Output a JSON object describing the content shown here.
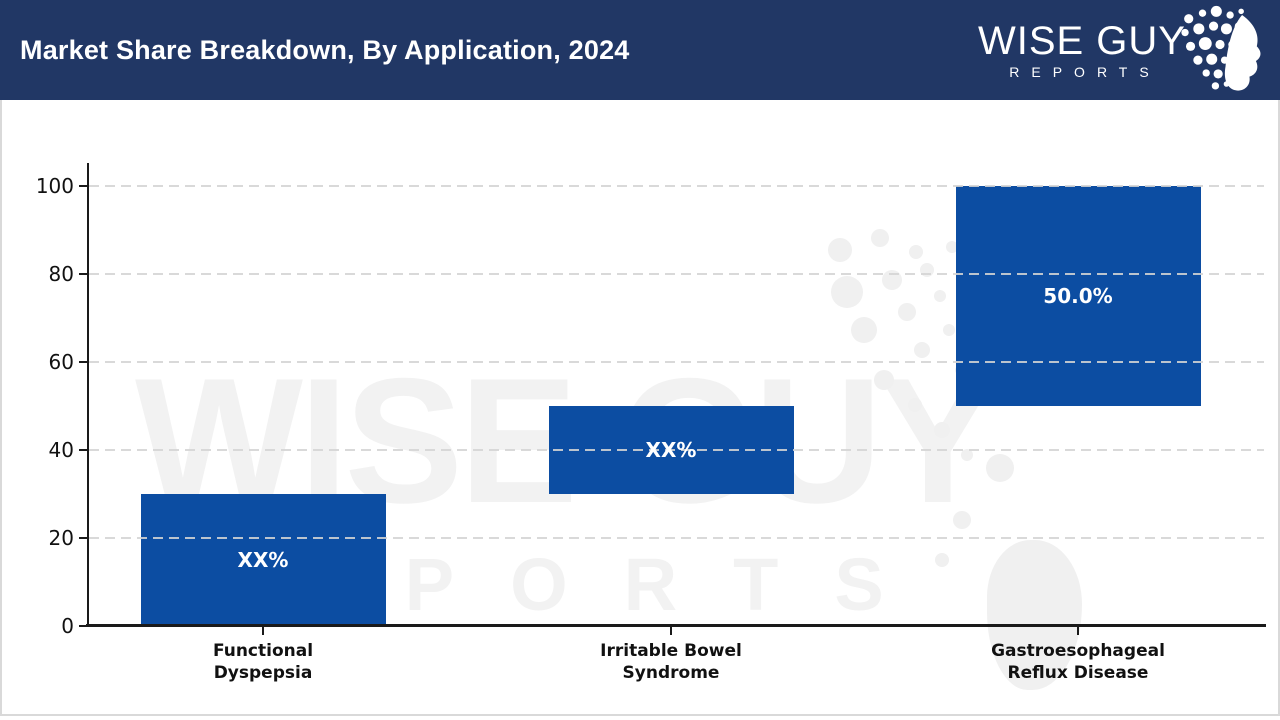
{
  "header": {
    "title": "Market Share Breakdown, By Application, 2024",
    "logo": {
      "line1": "WISE GUY",
      "line2": "REPORTS"
    }
  },
  "watermark": {
    "line1": "WISE GUY",
    "line2": "REPORTS"
  },
  "colors": {
    "header_bg": "#213765",
    "bar": "#0C4DA2",
    "bar_label": "#FFFFFF",
    "gridline": "#D4D4D4",
    "axis": "#1A1A1A",
    "panel_border": "#D9D9D9",
    "watermark": "#F2F2F2"
  },
  "chart_data": {
    "type": "bar",
    "variant": "floating-waterfall",
    "title": "Market Share Breakdown, By Application, 2024",
    "categories": [
      "Functional Dyspepsia",
      "Irritable Bowel Syndrome",
      "Gastroesophageal Reflux Disease"
    ],
    "category_lines": [
      [
        "Functional",
        "Dyspepsia"
      ],
      [
        "Irritable Bowel",
        "Syndrome"
      ],
      [
        "Gastroesophageal",
        "Reflux Disease"
      ]
    ],
    "bars": [
      {
        "category": "Functional Dyspepsia",
        "start": 0,
        "end": 30,
        "label": "XX%"
      },
      {
        "category": "Irritable Bowel Syndrome",
        "start": 30,
        "end": 50,
        "label": "XX%"
      },
      {
        "category": "Gastroesophageal Reflux Disease",
        "start": 50,
        "end": 100,
        "label": "50.0%"
      }
    ],
    "xlabel": "",
    "ylabel": "",
    "ylim": [
      0,
      100
    ],
    "yticks": [
      0,
      20,
      40,
      60,
      80,
      100
    ],
    "grid": "horizontal-dashed",
    "legend": "none",
    "bar_color": "#0C4DA2",
    "bar_label_color": "#FFFFFF"
  }
}
